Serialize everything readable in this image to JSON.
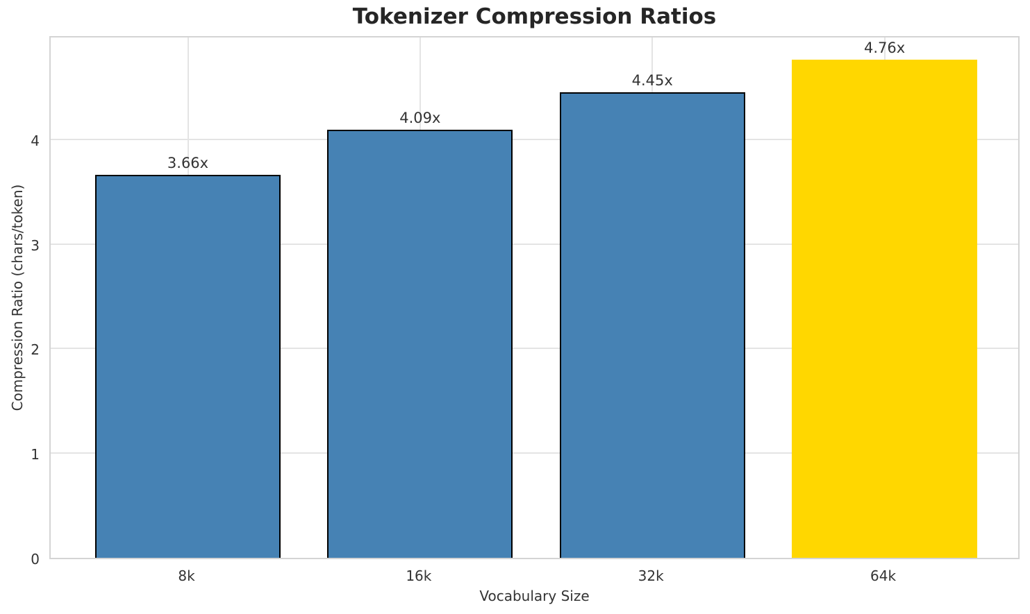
{
  "chart_data": {
    "type": "bar",
    "title": "Tokenizer Compression Ratios",
    "xlabel": "Vocabulary Size",
    "ylabel": "Compression Ratio (chars/token)",
    "categories": [
      "8k",
      "16k",
      "32k",
      "64k"
    ],
    "values": [
      3.66,
      4.09,
      4.45,
      4.76
    ],
    "bar_labels": [
      "3.66x",
      "4.09x",
      "4.45x",
      "4.76x"
    ],
    "ylim": [
      0,
      5
    ],
    "yticks": [
      0,
      1,
      2,
      3,
      4
    ],
    "grid": true,
    "legend": "none",
    "highlight_index": 3,
    "colors": {
      "bar_fill": "#4682B4",
      "highlight_fill": "#FFD700",
      "bar_edge": "#000000",
      "gridline": "#e4e4e4",
      "spine": "#d4d4d4",
      "title_text": "#262626",
      "tick_text": "#333333",
      "label_text": "#333333"
    }
  }
}
